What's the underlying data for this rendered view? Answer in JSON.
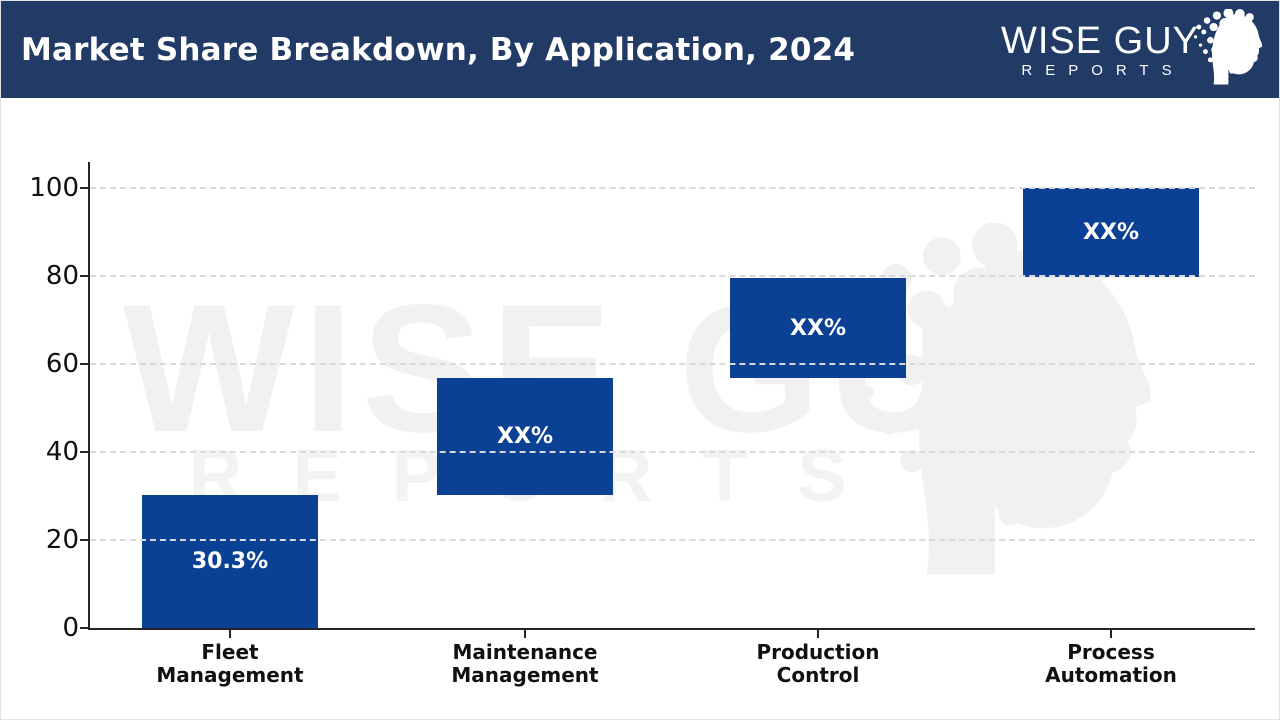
{
  "header": {
    "title": "Market Share Breakdown, By Application, 2024",
    "logo": {
      "name": "WISE GUY",
      "subname": "REPORTS"
    }
  },
  "watermark": {
    "line1": "WISE GUY",
    "line2": "REPORTS"
  },
  "chart_data": {
    "type": "bar",
    "subtype": "floating-waterfall",
    "title": "Market Share Breakdown, By Application, 2024",
    "categories": [
      "Fleet Management",
      "Maintenance Management",
      "Production Control",
      "Process Automation"
    ],
    "bars": [
      {
        "category": "Fleet Management",
        "start": 0,
        "end": 30.3,
        "label": "30.3%"
      },
      {
        "category": "Maintenance Management",
        "start": 30.3,
        "end": 56.8,
        "label": "XX%"
      },
      {
        "category": "Production Control",
        "start": 56.8,
        "end": 79.5,
        "label": "XX%"
      },
      {
        "category": "Process Automation",
        "start": 79.8,
        "end": 100,
        "label": "XX%"
      }
    ],
    "ylim": [
      0,
      100
    ],
    "yticks": [
      0,
      20,
      40,
      60,
      80,
      100
    ],
    "xlabel": "",
    "ylabel": "",
    "grid": {
      "horizontal": true,
      "style": "dashed",
      "color": "#d9d9d9",
      "on_top_of_bars": true
    },
    "legend": null,
    "bar_color": "#0b4194",
    "bar_label_color": "#ffffff",
    "header_color": "#213a66",
    "axis_color": "#262626"
  }
}
